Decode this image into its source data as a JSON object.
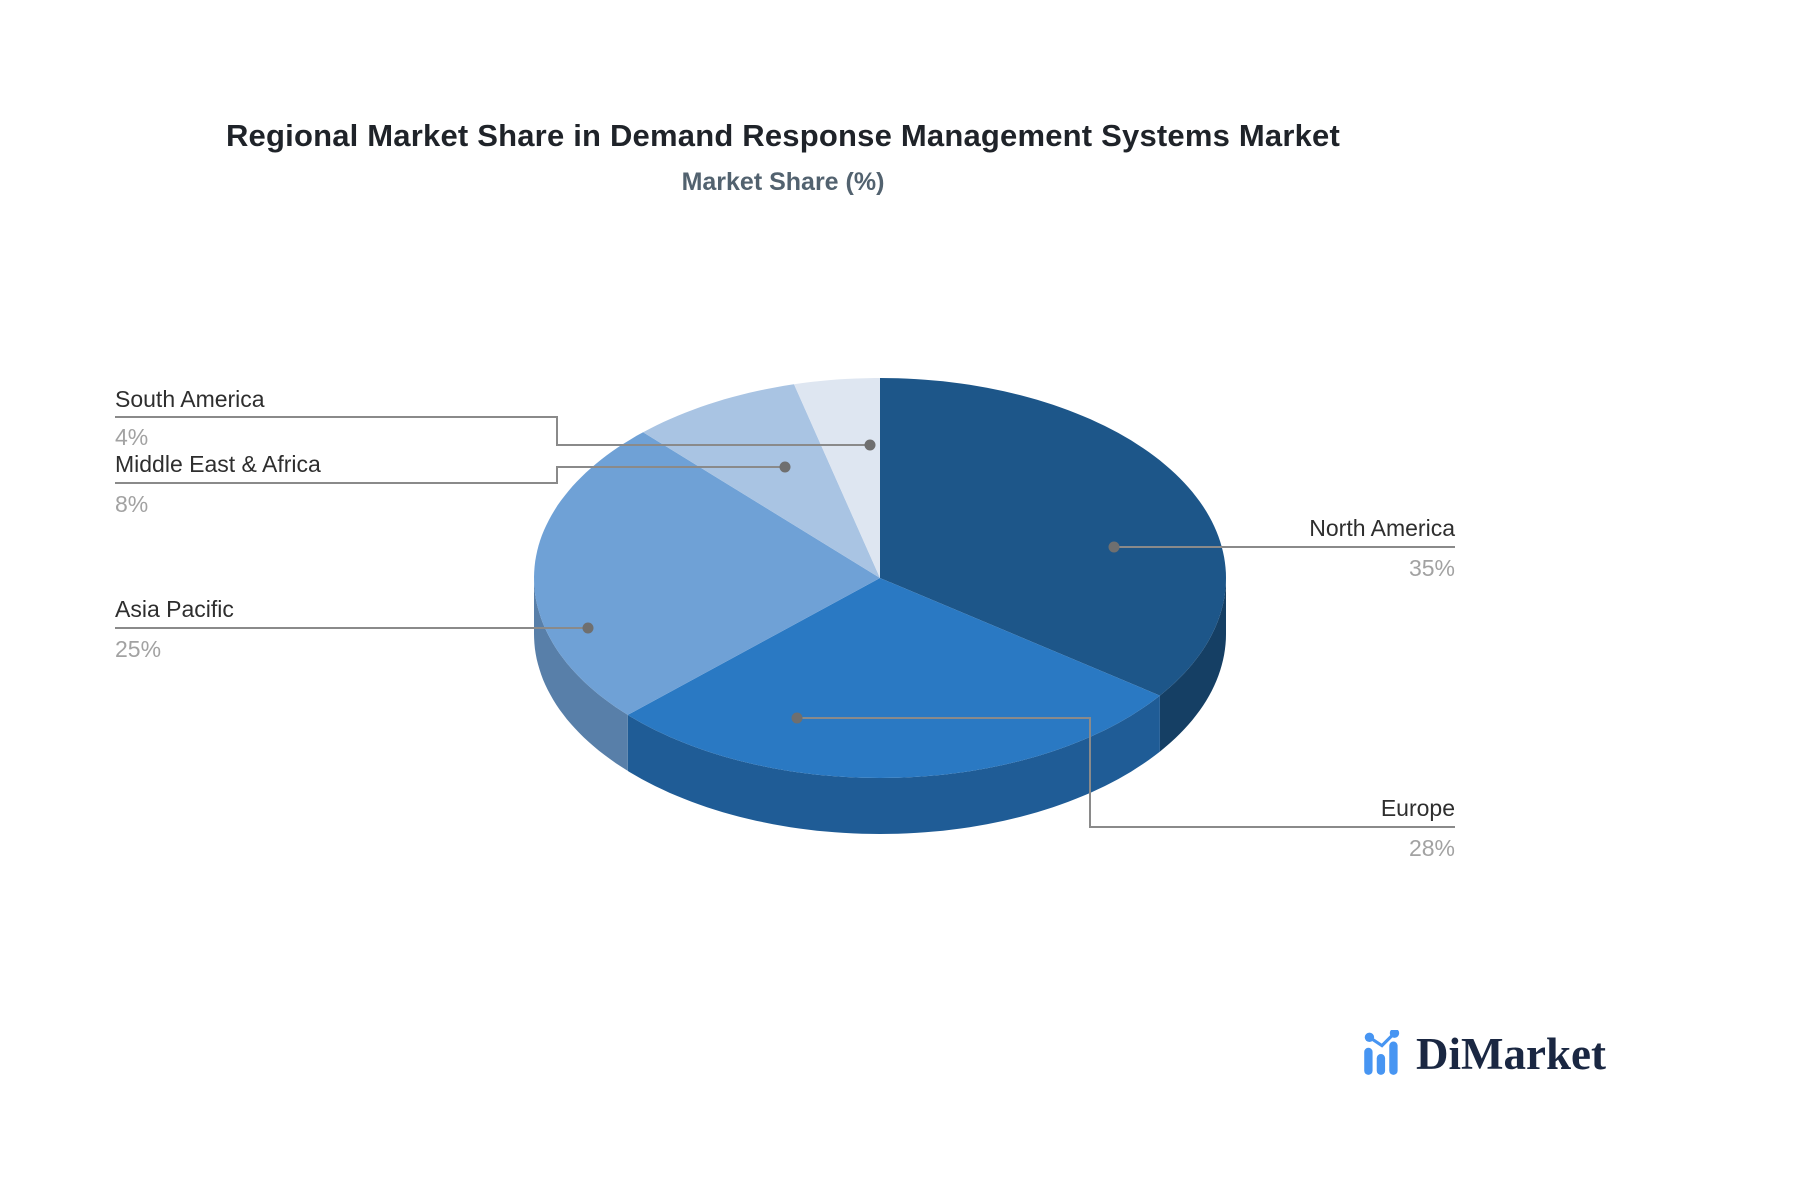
{
  "title": "Regional Market Share in Demand Response Management Systems Market",
  "subtitle": "Market Share (%)",
  "chart_data": {
    "type": "pie",
    "style": "3d-depth",
    "title": "Regional Market Share in Demand Response Management Systems Market",
    "subtitle": "Market Share (%)",
    "unit": "%",
    "direction": "clockwise",
    "start_angle_deg": 0,
    "legend": "none, callout labels with leader lines",
    "categories": [
      "North America",
      "Europe",
      "Asia Pacific",
      "Middle East & Africa",
      "South America"
    ],
    "values": [
      35,
      28,
      25,
      8,
      4
    ],
    "labels": [
      "35%",
      "28%",
      "25%",
      "8%",
      "4%"
    ],
    "colors": [
      "#1D5689",
      "#2A79C3",
      "#6FA1D6",
      "#A9C4E3",
      "#DEE6F1"
    ],
    "side_colors": [
      "#153F64",
      "#1F5C96",
      "#587FA9",
      "#8AA3C0",
      "#B5C2D4"
    ],
    "leader_line_color": "#8a8a8a",
    "leader_dot_color": "#6f6f6f",
    "label_name_color": "#2e2e2e",
    "label_value_color": "#a2a2a2"
  },
  "logo": {
    "text": "DiMarket",
    "icon": "bar-chart-trend-icon",
    "icon_color": "#4795F2",
    "text_color": "#1a2742"
  }
}
